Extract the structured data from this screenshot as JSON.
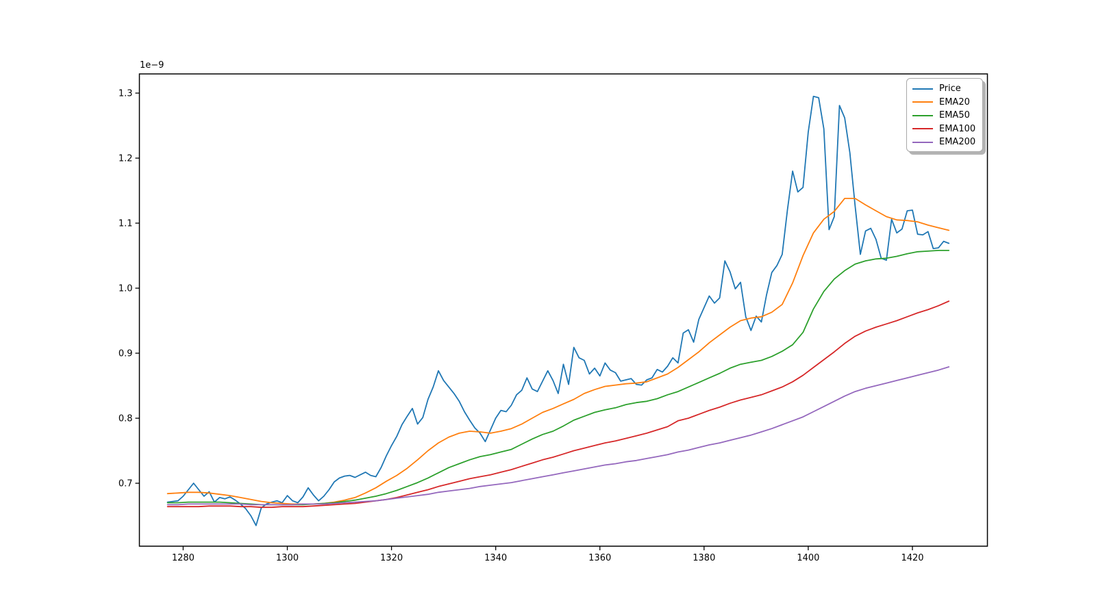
{
  "figure": {
    "background": "#ffffff",
    "axes_edge_color": "#000000",
    "text_color": "#000000"
  },
  "chart_data": {
    "type": "line",
    "title": "",
    "xlabel": "",
    "ylabel": "",
    "offset_label": "1e−9",
    "grid": false,
    "legend_position": "upper right",
    "x_ticks": [
      1280,
      1300,
      1320,
      1340,
      1360,
      1380,
      1400,
      1420
    ],
    "x_tick_labels": [
      "1280",
      "1300",
      "1320",
      "1340",
      "1360",
      "1380",
      "1400",
      "1420"
    ],
    "y_ticks": [
      0.7,
      0.8,
      0.9,
      1.0,
      1.1,
      1.2,
      1.3
    ],
    "y_tick_labels": [
      "0.7",
      "0.8",
      "0.9",
      "1.0",
      "1.1",
      "1.2",
      "1.3"
    ],
    "xlim": [
      1271.6,
      1434.4
    ],
    "ylim": [
      0.6032,
      1.3295
    ],
    "series": [
      {
        "name": "Price",
        "color": "#1f77b4",
        "x_start": 1277,
        "x_step": 1,
        "values": [
          0.671,
          0.672,
          0.673,
          0.68,
          0.69,
          0.7,
          0.69,
          0.68,
          0.687,
          0.671,
          0.678,
          0.676,
          0.679,
          0.674,
          0.668,
          0.661,
          0.65,
          0.635,
          0.662,
          0.668,
          0.671,
          0.673,
          0.67,
          0.681,
          0.673,
          0.67,
          0.679,
          0.693,
          0.682,
          0.673,
          0.68,
          0.69,
          0.702,
          0.708,
          0.711,
          0.712,
          0.709,
          0.713,
          0.717,
          0.712,
          0.71,
          0.724,
          0.742,
          0.758,
          0.772,
          0.79,
          0.803,
          0.815,
          0.791,
          0.801,
          0.829,
          0.848,
          0.873,
          0.858,
          0.848,
          0.838,
          0.826,
          0.81,
          0.797,
          0.785,
          0.777,
          0.764,
          0.782,
          0.8,
          0.812,
          0.81,
          0.82,
          0.836,
          0.843,
          0.862,
          0.845,
          0.841,
          0.857,
          0.873,
          0.858,
          0.838,
          0.883,
          0.852,
          0.909,
          0.893,
          0.889,
          0.868,
          0.877,
          0.865,
          0.885,
          0.874,
          0.87,
          0.857,
          0.859,
          0.861,
          0.852,
          0.851,
          0.859,
          0.862,
          0.875,
          0.871,
          0.88,
          0.893,
          0.885,
          0.931,
          0.936,
          0.917,
          0.952,
          0.97,
          0.988,
          0.977,
          0.985,
          1.042,
          1.025,
          0.999,
          1.009,
          0.956,
          0.935,
          0.957,
          0.948,
          0.99,
          1.024,
          1.035,
          1.052,
          1.12,
          1.18,
          1.148,
          1.155,
          1.24,
          1.295,
          1.293,
          1.245,
          1.09,
          1.11,
          1.281,
          1.262,
          1.208,
          1.127,
          1.052,
          1.088,
          1.092,
          1.075,
          1.046,
          1.043,
          1.106,
          1.085,
          1.091,
          1.119,
          1.12,
          1.083,
          1.082,
          1.087,
          1.061,
          1.062,
          1.072,
          1.069
        ]
      },
      {
        "name": "EMA20",
        "color": "#ff7f0e",
        "x_start": 1277,
        "x_step": 2,
        "values": [
          0.684,
          0.685,
          0.686,
          0.686,
          0.685,
          0.683,
          0.681,
          0.678,
          0.675,
          0.672,
          0.67,
          0.669,
          0.668,
          0.668,
          0.668,
          0.669,
          0.671,
          0.674,
          0.678,
          0.685,
          0.693,
          0.703,
          0.712,
          0.723,
          0.736,
          0.75,
          0.762,
          0.771,
          0.777,
          0.78,
          0.779,
          0.777,
          0.78,
          0.784,
          0.791,
          0.8,
          0.809,
          0.815,
          0.822,
          0.829,
          0.838,
          0.844,
          0.849,
          0.851,
          0.853,
          0.854,
          0.856,
          0.862,
          0.868,
          0.878,
          0.89,
          0.902,
          0.916,
          0.928,
          0.94,
          0.95,
          0.954,
          0.956,
          0.963,
          0.975,
          1.008,
          1.05,
          1.085,
          1.106,
          1.118,
          1.138,
          1.138,
          1.128,
          1.119,
          1.11,
          1.105,
          1.104,
          1.102,
          1.097,
          1.093,
          1.089
        ]
      },
      {
        "name": "EMA50",
        "color": "#2ca02c",
        "x_start": 1277,
        "x_step": 2,
        "values": [
          0.67,
          0.67,
          0.671,
          0.671,
          0.671,
          0.671,
          0.67,
          0.669,
          0.668,
          0.667,
          0.667,
          0.667,
          0.667,
          0.667,
          0.668,
          0.669,
          0.67,
          0.672,
          0.674,
          0.677,
          0.68,
          0.684,
          0.689,
          0.695,
          0.701,
          0.708,
          0.716,
          0.724,
          0.73,
          0.736,
          0.741,
          0.744,
          0.748,
          0.752,
          0.76,
          0.768,
          0.775,
          0.78,
          0.788,
          0.797,
          0.803,
          0.809,
          0.813,
          0.816,
          0.821,
          0.824,
          0.826,
          0.83,
          0.836,
          0.841,
          0.848,
          0.855,
          0.862,
          0.869,
          0.877,
          0.883,
          0.886,
          0.889,
          0.895,
          0.903,
          0.913,
          0.932,
          0.968,
          0.995,
          1.014,
          1.027,
          1.037,
          1.042,
          1.045,
          1.046,
          1.049,
          1.053,
          1.056,
          1.057,
          1.058,
          1.058
        ]
      },
      {
        "name": "EMA100",
        "color": "#d62728",
        "x_start": 1277,
        "x_step": 2,
        "values": [
          0.664,
          0.664,
          0.664,
          0.664,
          0.665,
          0.665,
          0.665,
          0.664,
          0.664,
          0.663,
          0.663,
          0.664,
          0.664,
          0.664,
          0.665,
          0.666,
          0.667,
          0.668,
          0.669,
          0.671,
          0.673,
          0.675,
          0.678,
          0.682,
          0.686,
          0.69,
          0.695,
          0.699,
          0.703,
          0.707,
          0.71,
          0.713,
          0.717,
          0.721,
          0.726,
          0.731,
          0.736,
          0.74,
          0.745,
          0.75,
          0.754,
          0.758,
          0.762,
          0.765,
          0.769,
          0.773,
          0.777,
          0.782,
          0.787,
          0.796,
          0.8,
          0.806,
          0.812,
          0.817,
          0.823,
          0.828,
          0.832,
          0.836,
          0.842,
          0.848,
          0.856,
          0.866,
          0.878,
          0.89,
          0.902,
          0.915,
          0.926,
          0.934,
          0.94,
          0.945,
          0.95,
          0.956,
          0.962,
          0.967,
          0.973,
          0.98
        ]
      },
      {
        "name": "EMA200",
        "color": "#9467bd",
        "x_start": 1277,
        "x_step": 2,
        "values": [
          0.667,
          0.667,
          0.668,
          0.668,
          0.668,
          0.668,
          0.668,
          0.668,
          0.667,
          0.667,
          0.667,
          0.667,
          0.667,
          0.668,
          0.668,
          0.668,
          0.669,
          0.67,
          0.671,
          0.672,
          0.673,
          0.675,
          0.677,
          0.679,
          0.681,
          0.683,
          0.686,
          0.688,
          0.69,
          0.692,
          0.695,
          0.697,
          0.699,
          0.701,
          0.704,
          0.707,
          0.71,
          0.713,
          0.716,
          0.719,
          0.722,
          0.725,
          0.728,
          0.73,
          0.733,
          0.735,
          0.738,
          0.741,
          0.744,
          0.748,
          0.751,
          0.755,
          0.759,
          0.762,
          0.766,
          0.77,
          0.774,
          0.779,
          0.784,
          0.79,
          0.796,
          0.802,
          0.81,
          0.818,
          0.826,
          0.834,
          0.841,
          0.846,
          0.85,
          0.854,
          0.858,
          0.862,
          0.866,
          0.87,
          0.874,
          0.879
        ]
      }
    ]
  }
}
